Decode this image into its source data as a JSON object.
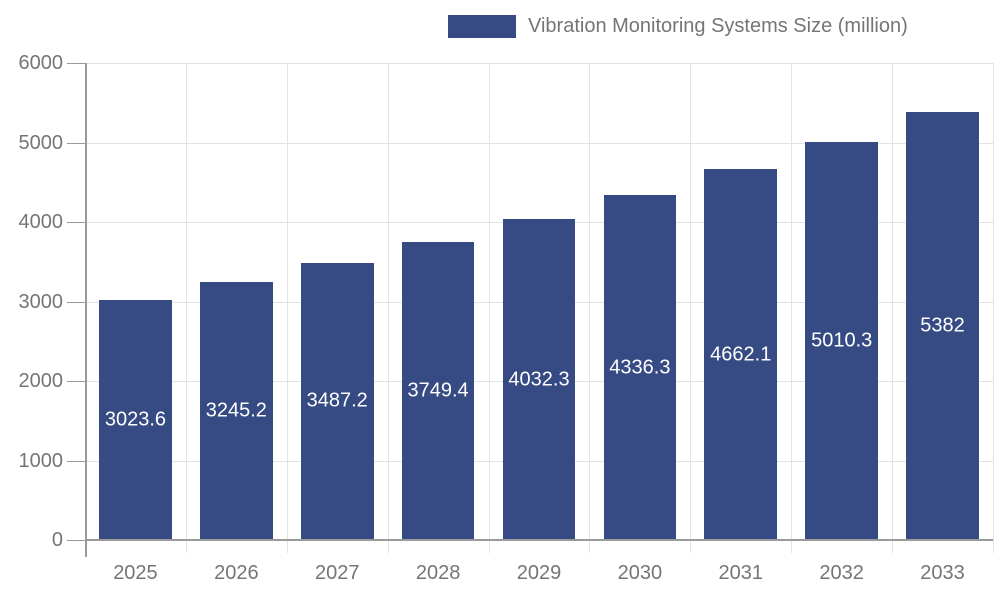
{
  "legend": {
    "label": "Vibration Monitoring Systems Size (million)"
  },
  "chart_data": {
    "type": "bar",
    "title": "Vibration Monitoring Systems Size (million)",
    "categories": [
      "2025",
      "2026",
      "2027",
      "2028",
      "2029",
      "2030",
      "2031",
      "2032",
      "2033"
    ],
    "values": [
      3023.6,
      3245.2,
      3487.2,
      3749.4,
      4032.3,
      4336.3,
      4662.1,
      5010.3,
      5382
    ],
    "value_labels": [
      "3023.6",
      "3245.2",
      "3487.2",
      "3749.4",
      "4032.3",
      "4336.3",
      "4662.1",
      "5010.3",
      "5382"
    ],
    "y_ticks": [
      0,
      1000,
      2000,
      3000,
      4000,
      5000,
      6000
    ],
    "y_tick_labels": [
      "0",
      "1000",
      "2000",
      "3000",
      "4000",
      "5000",
      "6000"
    ],
    "ylim": [
      0,
      6000
    ],
    "grid": true,
    "legend_position": "top",
    "colors": {
      "bar": "#364a83",
      "bar_label_text": "#ffffff",
      "axis_text": "#757575",
      "grid_line": "#e3e3e3",
      "axis_line": "#9a9a9a"
    }
  }
}
